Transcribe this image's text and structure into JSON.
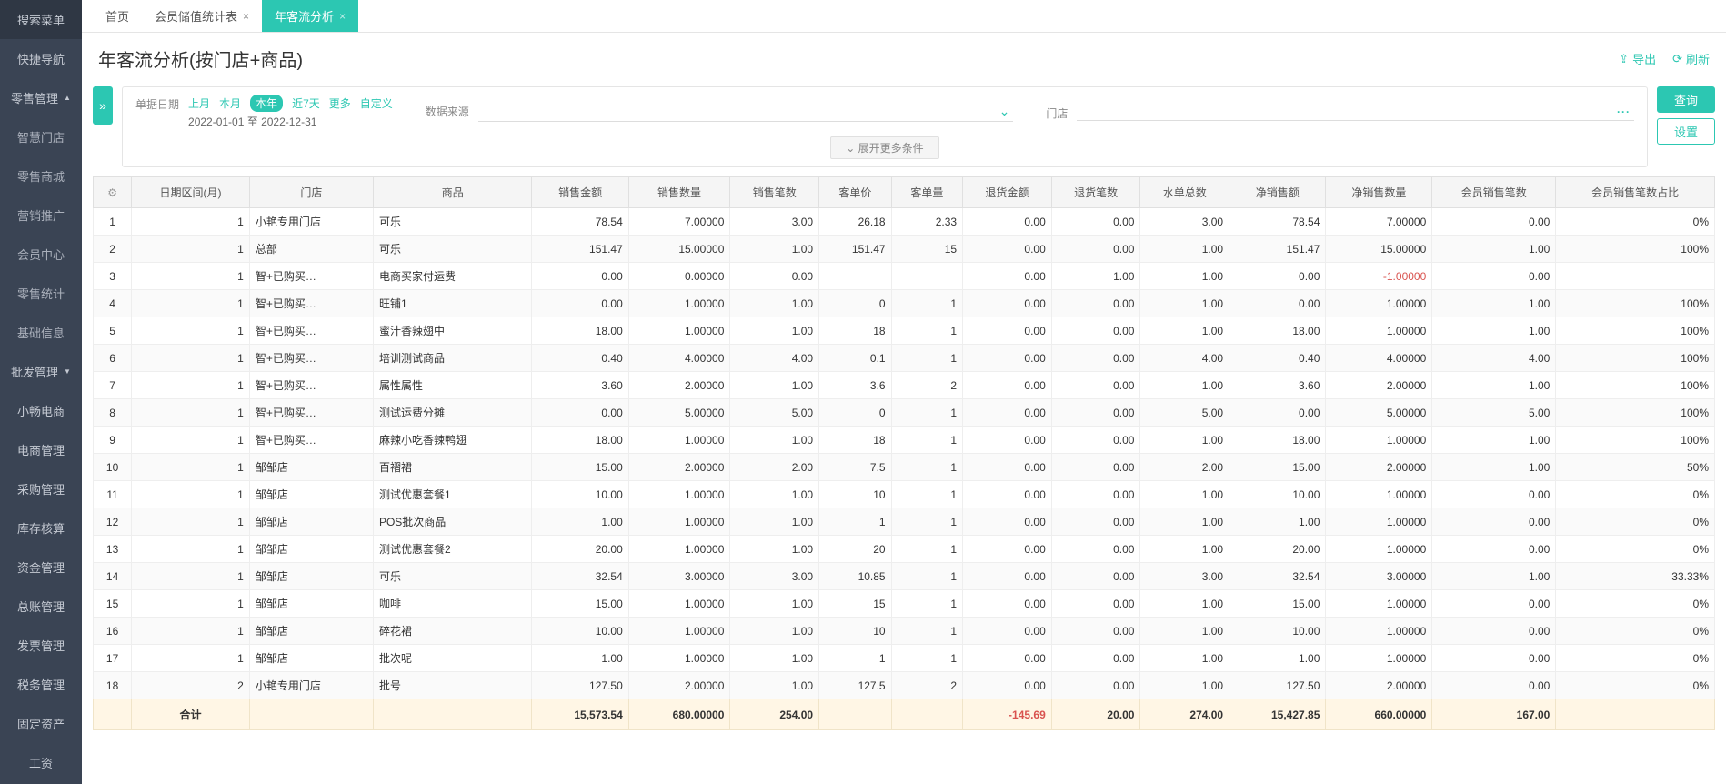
{
  "colors": {
    "accent": "#2cc7b2",
    "sidebar_bg": "#3a4454",
    "negative": "#d9534f",
    "footer_bg": "#fff6e5"
  },
  "sidebar": {
    "items": [
      {
        "label": "搜索菜单",
        "type": "top"
      },
      {
        "label": "快捷导航",
        "type": "top"
      },
      {
        "label": "零售管理",
        "type": "top",
        "expanded": true
      },
      {
        "label": "智慧门店",
        "type": "sub"
      },
      {
        "label": "零售商城",
        "type": "sub"
      },
      {
        "label": "营销推广",
        "type": "sub"
      },
      {
        "label": "会员中心",
        "type": "sub"
      },
      {
        "label": "零售统计",
        "type": "sub"
      },
      {
        "label": "基础信息",
        "type": "sub"
      },
      {
        "label": "批发管理",
        "type": "top",
        "collapsed": true
      },
      {
        "label": "小畅电商",
        "type": "top"
      },
      {
        "label": "电商管理",
        "type": "top"
      },
      {
        "label": "采购管理",
        "type": "top"
      },
      {
        "label": "库存核算",
        "type": "top"
      },
      {
        "label": "资金管理",
        "type": "top"
      },
      {
        "label": "总账管理",
        "type": "top"
      },
      {
        "label": "发票管理",
        "type": "top"
      },
      {
        "label": "税务管理",
        "type": "top"
      },
      {
        "label": "固定资产",
        "type": "top"
      },
      {
        "label": "工资",
        "type": "top"
      }
    ]
  },
  "tabs": [
    {
      "label": "首页",
      "closable": false,
      "active": false
    },
    {
      "label": "会员储值统计表",
      "closable": true,
      "active": false
    },
    {
      "label": "年客流分析",
      "closable": true,
      "active": true
    }
  ],
  "page": {
    "title": "年客流分析(按门店+商品)"
  },
  "header_actions": {
    "export": "导出",
    "refresh": "刷新"
  },
  "filters": {
    "date_label": "单据日期",
    "date_presets": [
      "上月",
      "本月",
      "本年",
      "近7天",
      "更多",
      "自定义"
    ],
    "date_active": "本年",
    "date_range": "2022-01-01 至 2022-12-31",
    "source_label": "数据来源",
    "store_label": "门店",
    "expand_label": "展开更多条件",
    "query_btn": "查询",
    "settings_btn": "设置"
  },
  "table": {
    "columns": [
      {
        "key": "idx",
        "label": "",
        "align": "center",
        "icon": "gear"
      },
      {
        "key": "month",
        "label": "日期区间(月)",
        "align": "right"
      },
      {
        "key": "store",
        "label": "门店",
        "align": "left"
      },
      {
        "key": "product",
        "label": "商品",
        "align": "left"
      },
      {
        "key": "sales_amt",
        "label": "销售金额",
        "align": "right"
      },
      {
        "key": "sales_qty",
        "label": "销售数量",
        "align": "right"
      },
      {
        "key": "sales_cnt",
        "label": "销售笔数",
        "align": "right"
      },
      {
        "key": "avg_price",
        "label": "客单价",
        "align": "right"
      },
      {
        "key": "avg_qty",
        "label": "客单量",
        "align": "right"
      },
      {
        "key": "return_amt",
        "label": "退货金额",
        "align": "right"
      },
      {
        "key": "return_cnt",
        "label": "退货笔数",
        "align": "right"
      },
      {
        "key": "order_total",
        "label": "水单总数",
        "align": "right"
      },
      {
        "key": "net_amt",
        "label": "净销售额",
        "align": "right"
      },
      {
        "key": "net_qty",
        "label": "净销售数量",
        "align": "right"
      },
      {
        "key": "member_cnt",
        "label": "会员销售笔数",
        "align": "right"
      },
      {
        "key": "member_pct",
        "label": "会员销售笔数占比",
        "align": "right"
      }
    ],
    "rows": [
      {
        "idx": 1,
        "month": 1,
        "store": "小艳专用门店",
        "product": "可乐",
        "sales_amt": "78.54",
        "sales_qty": "7.00000",
        "sales_cnt": "3.00",
        "avg_price": "26.18",
        "avg_qty": "2.33",
        "return_amt": "0.00",
        "return_cnt": "0.00",
        "order_total": "3.00",
        "net_amt": "78.54",
        "net_qty": "7.00000",
        "member_cnt": "0.00",
        "member_pct": "0%"
      },
      {
        "idx": 2,
        "month": 1,
        "store": "总部",
        "product": "可乐",
        "sales_amt": "151.47",
        "sales_qty": "15.00000",
        "sales_cnt": "1.00",
        "avg_price": "151.47",
        "avg_qty": "15",
        "return_amt": "0.00",
        "return_cnt": "0.00",
        "order_total": "1.00",
        "net_amt": "151.47",
        "net_qty": "15.00000",
        "member_cnt": "1.00",
        "member_pct": "100%"
      },
      {
        "idx": 3,
        "month": 1,
        "store": "智+已购买…",
        "product": "电商买家付运费",
        "sales_amt": "0.00",
        "sales_qty": "0.00000",
        "sales_cnt": "0.00",
        "avg_price": "",
        "avg_qty": "",
        "return_amt": "0.00",
        "return_cnt": "1.00",
        "order_total": "1.00",
        "net_amt": "0.00",
        "net_qty": "-1.00000",
        "net_qty_neg": true,
        "member_cnt": "0.00",
        "member_pct": ""
      },
      {
        "idx": 4,
        "month": 1,
        "store": "智+已购买…",
        "product": "旺铺1",
        "sales_amt": "0.00",
        "sales_qty": "1.00000",
        "sales_cnt": "1.00",
        "avg_price": "0",
        "avg_qty": "1",
        "return_amt": "0.00",
        "return_cnt": "0.00",
        "order_total": "1.00",
        "net_amt": "0.00",
        "net_qty": "1.00000",
        "member_cnt": "1.00",
        "member_pct": "100%"
      },
      {
        "idx": 5,
        "month": 1,
        "store": "智+已购买…",
        "product": "蜜汁香辣翅中",
        "sales_amt": "18.00",
        "sales_qty": "1.00000",
        "sales_cnt": "1.00",
        "avg_price": "18",
        "avg_qty": "1",
        "return_amt": "0.00",
        "return_cnt": "0.00",
        "order_total": "1.00",
        "net_amt": "18.00",
        "net_qty": "1.00000",
        "member_cnt": "1.00",
        "member_pct": "100%"
      },
      {
        "idx": 6,
        "month": 1,
        "store": "智+已购买…",
        "product": "培训测试商品",
        "sales_amt": "0.40",
        "sales_qty": "4.00000",
        "sales_cnt": "4.00",
        "avg_price": "0.1",
        "avg_qty": "1",
        "return_amt": "0.00",
        "return_cnt": "0.00",
        "order_total": "4.00",
        "net_amt": "0.40",
        "net_qty": "4.00000",
        "member_cnt": "4.00",
        "member_pct": "100%"
      },
      {
        "idx": 7,
        "month": 1,
        "store": "智+已购买…",
        "product": "属性属性",
        "sales_amt": "3.60",
        "sales_qty": "2.00000",
        "sales_cnt": "1.00",
        "avg_price": "3.6",
        "avg_qty": "2",
        "return_amt": "0.00",
        "return_cnt": "0.00",
        "order_total": "1.00",
        "net_amt": "3.60",
        "net_qty": "2.00000",
        "member_cnt": "1.00",
        "member_pct": "100%"
      },
      {
        "idx": 8,
        "month": 1,
        "store": "智+已购买…",
        "product": "测试运费分摊",
        "sales_amt": "0.00",
        "sales_qty": "5.00000",
        "sales_cnt": "5.00",
        "avg_price": "0",
        "avg_qty": "1",
        "return_amt": "0.00",
        "return_cnt": "0.00",
        "order_total": "5.00",
        "net_amt": "0.00",
        "net_qty": "5.00000",
        "member_cnt": "5.00",
        "member_pct": "100%"
      },
      {
        "idx": 9,
        "month": 1,
        "store": "智+已购买…",
        "product": "麻辣小吃香辣鸭翅",
        "sales_amt": "18.00",
        "sales_qty": "1.00000",
        "sales_cnt": "1.00",
        "avg_price": "18",
        "avg_qty": "1",
        "return_amt": "0.00",
        "return_cnt": "0.00",
        "order_total": "1.00",
        "net_amt": "18.00",
        "net_qty": "1.00000",
        "member_cnt": "1.00",
        "member_pct": "100%"
      },
      {
        "idx": 10,
        "month": 1,
        "store": "邹邹店",
        "product": "百褶裙",
        "sales_amt": "15.00",
        "sales_qty": "2.00000",
        "sales_cnt": "2.00",
        "avg_price": "7.5",
        "avg_qty": "1",
        "return_amt": "0.00",
        "return_cnt": "0.00",
        "order_total": "2.00",
        "net_amt": "15.00",
        "net_qty": "2.00000",
        "member_cnt": "1.00",
        "member_pct": "50%"
      },
      {
        "idx": 11,
        "month": 1,
        "store": "邹邹店",
        "product": "测试优惠套餐1",
        "sales_amt": "10.00",
        "sales_qty": "1.00000",
        "sales_cnt": "1.00",
        "avg_price": "10",
        "avg_qty": "1",
        "return_amt": "0.00",
        "return_cnt": "0.00",
        "order_total": "1.00",
        "net_amt": "10.00",
        "net_qty": "1.00000",
        "member_cnt": "0.00",
        "member_pct": "0%"
      },
      {
        "idx": 12,
        "month": 1,
        "store": "邹邹店",
        "product": "POS批次商品",
        "sales_amt": "1.00",
        "sales_qty": "1.00000",
        "sales_cnt": "1.00",
        "avg_price": "1",
        "avg_qty": "1",
        "return_amt": "0.00",
        "return_cnt": "0.00",
        "order_total": "1.00",
        "net_amt": "1.00",
        "net_qty": "1.00000",
        "member_cnt": "0.00",
        "member_pct": "0%"
      },
      {
        "idx": 13,
        "month": 1,
        "store": "邹邹店",
        "product": "测试优惠套餐2",
        "sales_amt": "20.00",
        "sales_qty": "1.00000",
        "sales_cnt": "1.00",
        "avg_price": "20",
        "avg_qty": "1",
        "return_amt": "0.00",
        "return_cnt": "0.00",
        "order_total": "1.00",
        "net_amt": "20.00",
        "net_qty": "1.00000",
        "member_cnt": "0.00",
        "member_pct": "0%"
      },
      {
        "idx": 14,
        "month": 1,
        "store": "邹邹店",
        "product": "可乐",
        "sales_amt": "32.54",
        "sales_qty": "3.00000",
        "sales_cnt": "3.00",
        "avg_price": "10.85",
        "avg_qty": "1",
        "return_amt": "0.00",
        "return_cnt": "0.00",
        "order_total": "3.00",
        "net_amt": "32.54",
        "net_qty": "3.00000",
        "member_cnt": "1.00",
        "member_pct": "33.33%"
      },
      {
        "idx": 15,
        "month": 1,
        "store": "邹邹店",
        "product": "咖啡",
        "sales_amt": "15.00",
        "sales_qty": "1.00000",
        "sales_cnt": "1.00",
        "avg_price": "15",
        "avg_qty": "1",
        "return_amt": "0.00",
        "return_cnt": "0.00",
        "order_total": "1.00",
        "net_amt": "15.00",
        "net_qty": "1.00000",
        "member_cnt": "0.00",
        "member_pct": "0%"
      },
      {
        "idx": 16,
        "month": 1,
        "store": "邹邹店",
        "product": "碎花裙",
        "sales_amt": "10.00",
        "sales_qty": "1.00000",
        "sales_cnt": "1.00",
        "avg_price": "10",
        "avg_qty": "1",
        "return_amt": "0.00",
        "return_cnt": "0.00",
        "order_total": "1.00",
        "net_amt": "10.00",
        "net_qty": "1.00000",
        "member_cnt": "0.00",
        "member_pct": "0%"
      },
      {
        "idx": 17,
        "month": 1,
        "store": "邹邹店",
        "product": "批次呢",
        "sales_amt": "1.00",
        "sales_qty": "1.00000",
        "sales_cnt": "1.00",
        "avg_price": "1",
        "avg_qty": "1",
        "return_amt": "0.00",
        "return_cnt": "0.00",
        "order_total": "1.00",
        "net_amt": "1.00",
        "net_qty": "1.00000",
        "member_cnt": "0.00",
        "member_pct": "0%"
      },
      {
        "idx": 18,
        "month": 2,
        "store": "小艳专用门店",
        "product": "批号",
        "sales_amt": "127.50",
        "sales_qty": "2.00000",
        "sales_cnt": "1.00",
        "avg_price": "127.5",
        "avg_qty": "2",
        "return_amt": "0.00",
        "return_cnt": "0.00",
        "order_total": "1.00",
        "net_amt": "127.50",
        "net_qty": "2.00000",
        "member_cnt": "0.00",
        "member_pct": "0%"
      }
    ],
    "footer": {
      "label": "合计",
      "sales_amt": "15,573.54",
      "sales_qty": "680.00000",
      "sales_cnt": "254.00",
      "avg_price": "",
      "avg_qty": "",
      "return_amt": "-145.69",
      "return_amt_neg": true,
      "return_cnt": "20.00",
      "order_total": "274.00",
      "net_amt": "15,427.85",
      "net_qty": "660.00000",
      "member_cnt": "167.00",
      "member_pct": ""
    }
  }
}
